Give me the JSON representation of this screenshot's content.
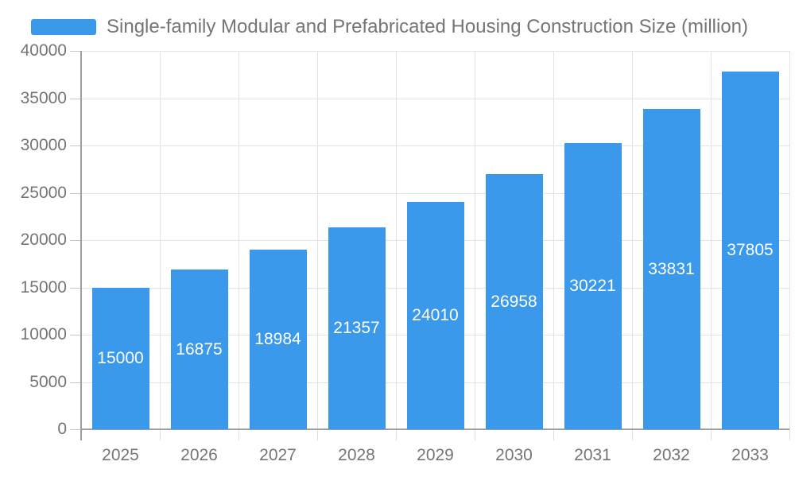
{
  "page": {
    "background": "#ffffff"
  },
  "colors": {
    "bar": "#3b99ec",
    "grid": "#e3e3e3",
    "axis": "#9e9e9e",
    "y_tick": "#c6c6c6",
    "x_tick": "#dedede",
    "text": "#757575",
    "value_text": "#ffffff",
    "background": "#ffffff"
  },
  "chart_data": {
    "type": "bar",
    "title": "Single-family Modular and Prefabricated Housing Construction Size (million)",
    "legend": [
      "Single-family Modular and Prefabricated Housing Construction Size (million)"
    ],
    "legend_position": "top-left",
    "categories": [
      "2025",
      "2026",
      "2027",
      "2028",
      "2029",
      "2030",
      "2031",
      "2032",
      "2033"
    ],
    "values": [
      15000,
      16875,
      18984,
      21357,
      24010,
      26958,
      30221,
      33831,
      37805
    ],
    "yticks": [
      "0",
      "5000",
      "10000",
      "15000",
      "20000",
      "25000",
      "30000",
      "35000",
      "40000"
    ],
    "ylim": [
      0,
      40000
    ],
    "ytick_step": 5000,
    "grid": true,
    "bar_label_position": "inside-center",
    "xlabel": "",
    "ylabel": ""
  }
}
